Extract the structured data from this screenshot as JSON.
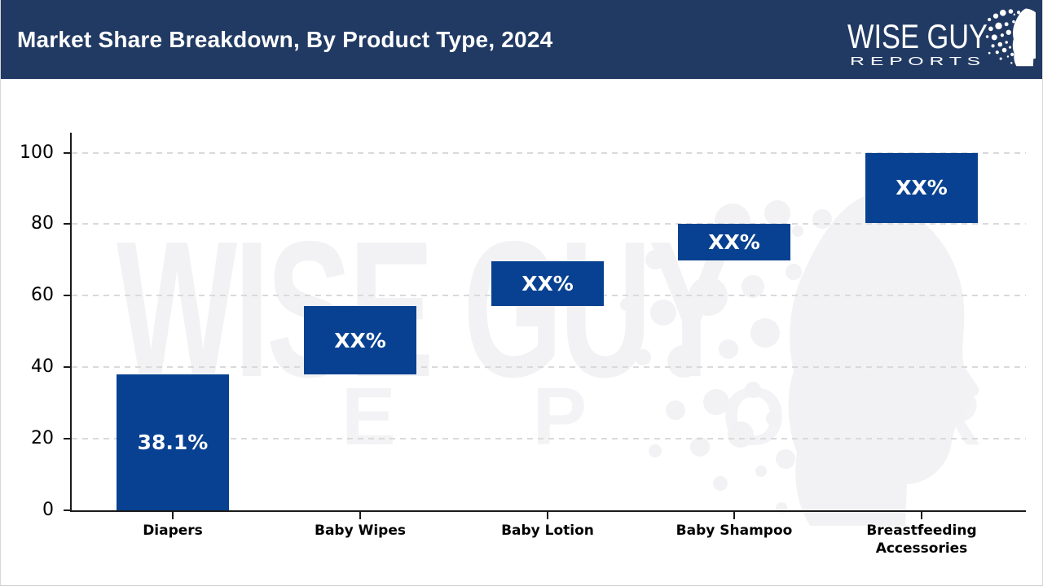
{
  "header": {
    "title": "Market Share Breakdown, By Product Type, 2024",
    "logo": {
      "line1": "WISE GUY",
      "line2": "R E P O R T S"
    }
  },
  "watermark": {
    "line1": "WISE GUY",
    "line2": "R E P O R T S"
  },
  "colors": {
    "header_bg": "#213A63",
    "title_text": "#FFFFFF",
    "bar": "#084191",
    "bar_label_text": "#FFFFFF",
    "axis": "#1A1A1A",
    "grid": "#DADADA",
    "tick_text": "#000000",
    "watermark": "#F2F2F4"
  },
  "chart_data": {
    "type": "bar",
    "subtype": "waterfall",
    "title": "Market Share Breakdown, By Product Type, 2024",
    "xlabel": "",
    "ylabel": "",
    "ylim": [
      0,
      107
    ],
    "yticks": [
      0,
      20,
      40,
      60,
      80,
      100
    ],
    "grid": "horizontal-dashed",
    "legend": null,
    "categories": [
      "Diapers",
      "Baby Wipes",
      "Baby Lotion",
      "Baby Shampoo",
      "Breastfeeding Accessories"
    ],
    "segments": [
      {
        "category": "Diapers",
        "category_lines": [
          "Diapers"
        ],
        "start": 0,
        "end": 38.1,
        "value": 38.1,
        "label": "38.1%"
      },
      {
        "category": "Baby Wipes",
        "category_lines": [
          "Baby Wipes"
        ],
        "start": 38.1,
        "end": 57.0,
        "value": 18.9,
        "label": "XX%"
      },
      {
        "category": "Baby Lotion",
        "category_lines": [
          "Baby Lotion"
        ],
        "start": 57.1,
        "end": 69.7,
        "value": 12.6,
        "label": "XX%"
      },
      {
        "category": "Baby Shampoo",
        "category_lines": [
          "Baby Shampoo"
        ],
        "start": 69.9,
        "end": 80.1,
        "value": 10.2,
        "label": "XX%"
      },
      {
        "category": "Breastfeeding Accessories",
        "category_lines": [
          "Breastfeeding",
          "Accessories"
        ],
        "start": 80.3,
        "end": 100.0,
        "value": 19.7,
        "label": "XX%"
      }
    ]
  }
}
